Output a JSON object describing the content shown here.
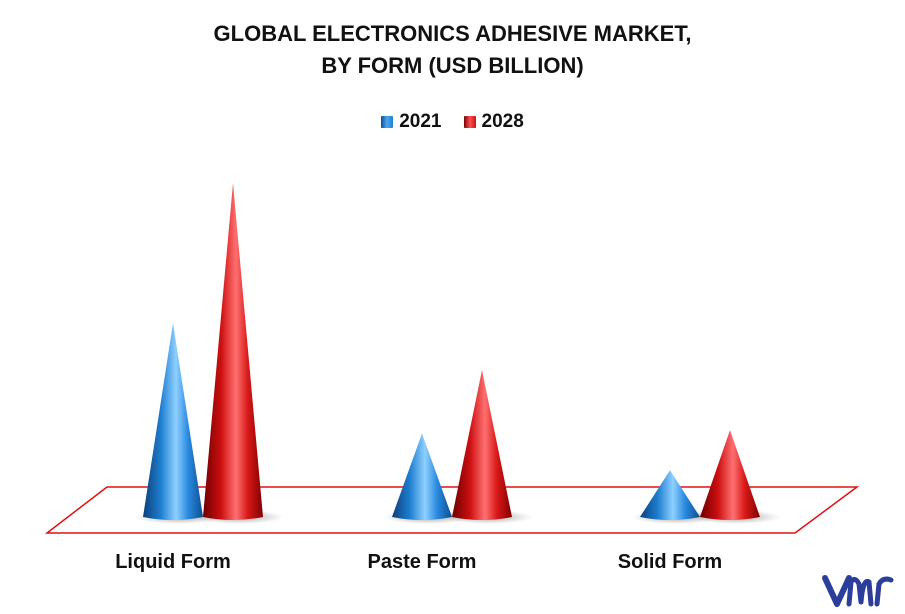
{
  "chart_data": {
    "type": "bar",
    "title": [
      "GLOBAL ELECTRONICS ADHESIVE MARKET,",
      "BY FORM (USD BILLION)"
    ],
    "categories": [
      "Liquid Form",
      "Paste Form",
      "Solid Form"
    ],
    "series": [
      {
        "name": "2021",
        "color": "#1f7fd0",
        "values": [
          5.8,
          2.5,
          1.4
        ]
      },
      {
        "name": "2028",
        "color": "#cc0f10",
        "values": [
          10.0,
          4.4,
          2.6
        ]
      }
    ],
    "ylim": [
      0,
      10.5
    ],
    "grid": false,
    "legend_position": "top-center",
    "xlabel": "",
    "ylabel": ""
  },
  "logo": {
    "icon": "vmr-logo",
    "color": "#2c3e9c"
  }
}
